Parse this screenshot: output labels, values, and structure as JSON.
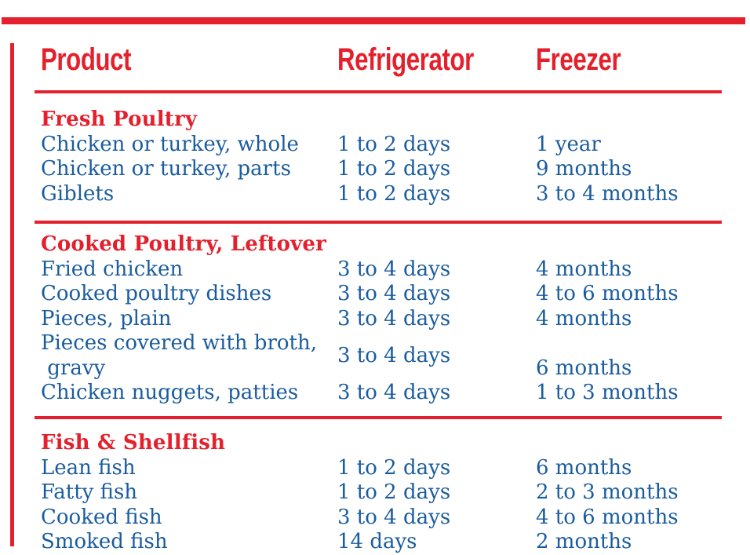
{
  "page": {
    "colors": {
      "accent_red": "#e4202c",
      "text_blue": "#1a5c9e",
      "background": "#ffffff"
    }
  },
  "table": {
    "columns": {
      "product": "Product",
      "refrigerator": "Refrigerator",
      "freezer": "Freezer"
    },
    "sections": [
      {
        "title": "Fresh Poultry",
        "rows": [
          {
            "product": "Chicken or turkey, whole",
            "refrigerator": "1 to 2 days",
            "freezer": "1 year"
          },
          {
            "product": "Chicken or turkey, parts",
            "refrigerator": "1 to 2 days",
            "freezer": "9 months"
          },
          {
            "product": "Giblets",
            "refrigerator": "1 to 2 days",
            "freezer": "3 to 4 months"
          }
        ]
      },
      {
        "title": "Cooked Poultry, Leftover",
        "rows": [
          {
            "product": "Fried chicken",
            "refrigerator": "3 to 4 days",
            "freezer": "4 months"
          },
          {
            "product": "Cooked poultry dishes",
            "refrigerator": "3 to 4 days",
            "freezer": "4 to 6 months"
          },
          {
            "product": "Pieces, plain",
            "refrigerator": "3 to 4 days",
            "freezer": "4 months"
          },
          {
            "product": "Pieces covered with broth,\n gravy",
            "refrigerator": "3 to 4 days",
            "freezer": "6 months"
          },
          {
            "product": "Chicken nuggets, patties",
            "refrigerator": "3 to 4 days",
            "freezer": "1 to 3 months"
          }
        ]
      },
      {
        "title": "Fish & Shellfish",
        "rows": [
          {
            "product": "Lean fish",
            "refrigerator": "1 to 2 days",
            "freezer": "6 months"
          },
          {
            "product": "Fatty fish",
            "refrigerator": "1 to 2 days",
            "freezer": "2 to 3 months"
          },
          {
            "product": "Cooked fish",
            "refrigerator": "3 to 4 days",
            "freezer": "4 to 6 months"
          },
          {
            "product": "Smoked fish",
            "refrigerator": "14 days",
            "freezer": "2 months"
          }
        ]
      }
    ]
  }
}
